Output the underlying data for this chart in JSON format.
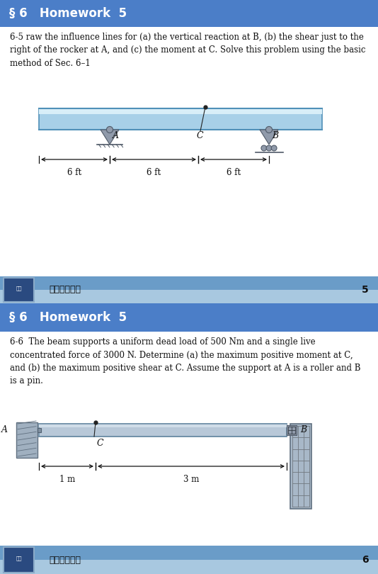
{
  "header_color": "#4B7EC8",
  "header_text_color": "#FFFFFF",
  "header_title": "§ 6   Homework  5",
  "bg_color": "#FFFFFF",
  "section1_text": "6-5 raw the influence lines for (a) the vertical reaction at B, (b) the shear just to the\nright of the rocker at A, and (c) the moment at C. Solve this problem using the basic\nmethod of Sec. 6–1",
  "section2_header_title": "§ 6   Homework  5",
  "section2_text": "6-6  The beam supports a uniform dead load of 500 Nm and a single live\nconcentrated force of 3000 N. Determine (a) the maximum positive moment at C,\nand (b) the maximum positive shear at C. Assume the support at A is a roller and B\nis a pin.",
  "footer1_text": "土木工程学院",
  "footer1_page": "5",
  "footer2_text": "土木工程学院",
  "footer2_page": "6",
  "beam1_face": "#A8D0E8",
  "beam1_top": "#D8EEF8",
  "beam1_edge": "#5090B8",
  "beam2_face": "#B8C8D8",
  "beam2_top": "#D0DDE8",
  "beam2_edge": "#7090A8",
  "support_face": "#909AAA",
  "support_edge": "#505A68",
  "footer_top": "#6A9CC8",
  "footer_bot": "#A8C8E0"
}
